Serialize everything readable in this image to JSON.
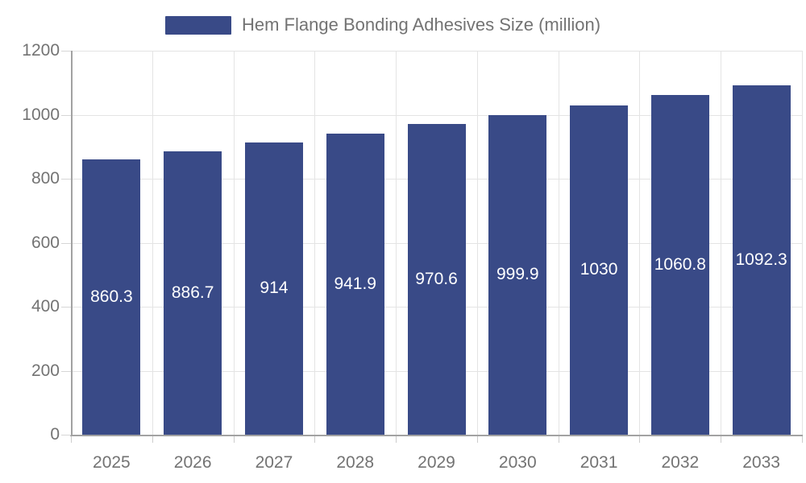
{
  "chart_data": {
    "type": "bar",
    "title": "Hem Flange Bonding Adhesives Size (million)",
    "categories": [
      "2025",
      "2026",
      "2027",
      "2028",
      "2029",
      "2030",
      "2031",
      "2032",
      "2033"
    ],
    "values": [
      860.3,
      886.7,
      914,
      941.9,
      970.6,
      999.9,
      1030,
      1060.8,
      1092.3
    ],
    "xlabel": "",
    "ylabel": "",
    "ylim": [
      0,
      1200
    ],
    "ytick_step": 200,
    "yticks": [
      "0",
      "200",
      "400",
      "600",
      "800",
      "1000",
      "1200"
    ],
    "grid": true,
    "legend_position": "top",
    "bar_color": "#394A87",
    "value_label_color": "#ffffff",
    "axis_text_color": "#737373"
  }
}
